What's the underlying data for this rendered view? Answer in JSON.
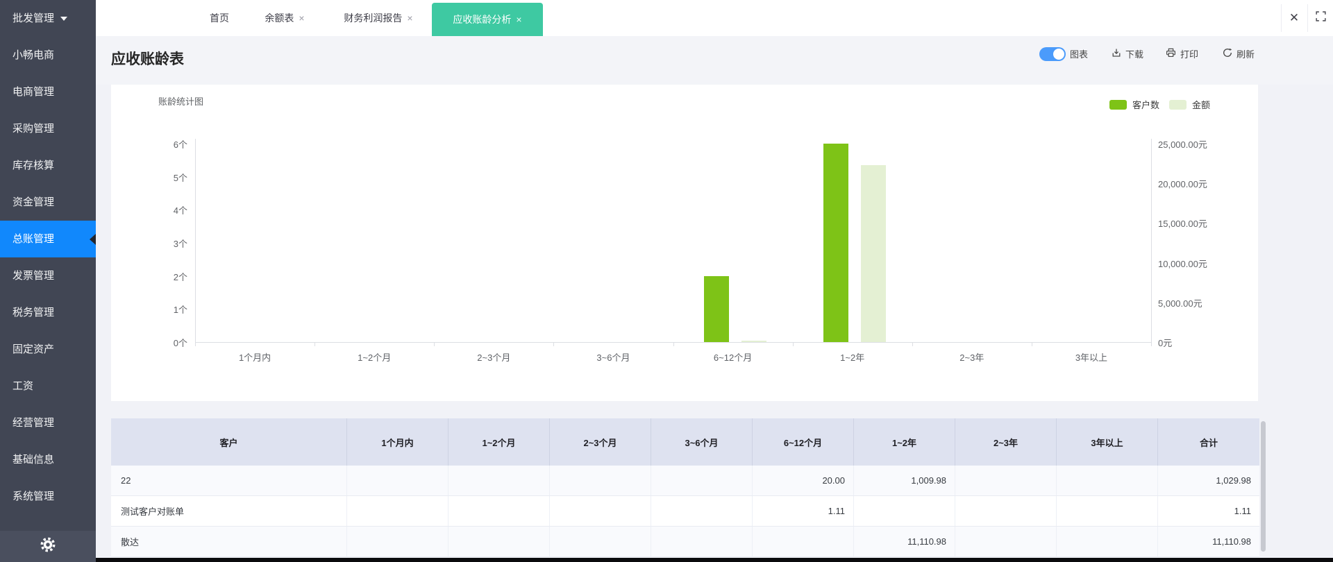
{
  "ui": {
    "close_glyph": "×",
    "window_close_glyph": "✕"
  },
  "sidebar": {
    "items": [
      {
        "label": "批发管理",
        "caret": true,
        "active": false
      },
      {
        "label": "小畅电商",
        "caret": false,
        "active": false
      },
      {
        "label": "电商管理",
        "caret": false,
        "active": false
      },
      {
        "label": "采购管理",
        "caret": false,
        "active": false
      },
      {
        "label": "库存核算",
        "caret": false,
        "active": false
      },
      {
        "label": "资金管理",
        "caret": false,
        "active": false
      },
      {
        "label": "总账管理",
        "caret": false,
        "active": true
      },
      {
        "label": "发票管理",
        "caret": false,
        "active": false
      },
      {
        "label": "税务管理",
        "caret": false,
        "active": false
      },
      {
        "label": "固定资产",
        "caret": false,
        "active": false
      },
      {
        "label": "工资",
        "caret": false,
        "active": false
      },
      {
        "label": "经营管理",
        "caret": false,
        "active": false
      },
      {
        "label": "基础信息",
        "caret": false,
        "active": false
      },
      {
        "label": "系统管理",
        "caret": false,
        "active": false
      }
    ]
  },
  "tabs": [
    {
      "label": "首页",
      "closable": false,
      "active": false
    },
    {
      "label": "余额表",
      "closable": true,
      "active": false
    },
    {
      "label": "财务利润报告",
      "closable": true,
      "active": false
    },
    {
      "label": "应收账龄分析",
      "closable": true,
      "active": true
    }
  ],
  "page": {
    "title": "应收账龄表"
  },
  "toolbar": {
    "chart_toggle_label": "图表",
    "toggle_on": true,
    "download_label": "下载",
    "print_label": "打印",
    "refresh_label": "刷新"
  },
  "chart_data": {
    "type": "bar",
    "title": "账龄统计图",
    "categories": [
      "1个月内",
      "1~2个月",
      "2~3个月",
      "3~6个月",
      "6~12个月",
      "1~2年",
      "2~3年",
      "3年以上"
    ],
    "series": [
      {
        "name": "客户数",
        "axis": "left",
        "color": "#7ec317",
        "values": [
          0,
          0,
          0,
          0,
          2,
          6,
          0,
          0
        ]
      },
      {
        "name": "金额",
        "axis": "right",
        "color": "#e4f0d3",
        "values": [
          0,
          0,
          0,
          0,
          21.11,
          22300,
          0,
          0
        ]
      }
    ],
    "left_axis": {
      "unit": "个",
      "max": 6,
      "labels": [
        "6个",
        "5个",
        "4个",
        "3个",
        "2个",
        "1个",
        "0个"
      ]
    },
    "right_axis": {
      "unit": "元",
      "max": 25000,
      "labels": [
        "25,000.00元",
        "20,000.00元",
        "15,000.00元",
        "10,000.00元",
        "5,000.00元",
        "0元"
      ]
    },
    "legend_position": "top-right",
    "grid": false
  },
  "table": {
    "headers": [
      "客户",
      "1个月内",
      "1~2个月",
      "2~3个月",
      "3~6个月",
      "6~12个月",
      "1~2年",
      "2~3年",
      "3年以上",
      "合计"
    ],
    "rows": [
      [
        "22",
        "",
        "",
        "",
        "",
        "20.00",
        "1,009.98",
        "",
        "",
        "1,029.98"
      ],
      [
        "测试客户对账单",
        "",
        "",
        "",
        "",
        "1.11",
        "",
        "",
        "",
        "1.11"
      ],
      [
        "散达",
        "",
        "",
        "",
        "",
        "",
        "11,110.98",
        "",
        "",
        "11,110.98"
      ]
    ]
  },
  "colors": {
    "sidebar_active": "#1188fc",
    "tab_active": "#3ec9a2",
    "toggle_blue": "#4b9bfb",
    "series_green": "#7ec317",
    "series_light_green": "#e4f0d3"
  }
}
